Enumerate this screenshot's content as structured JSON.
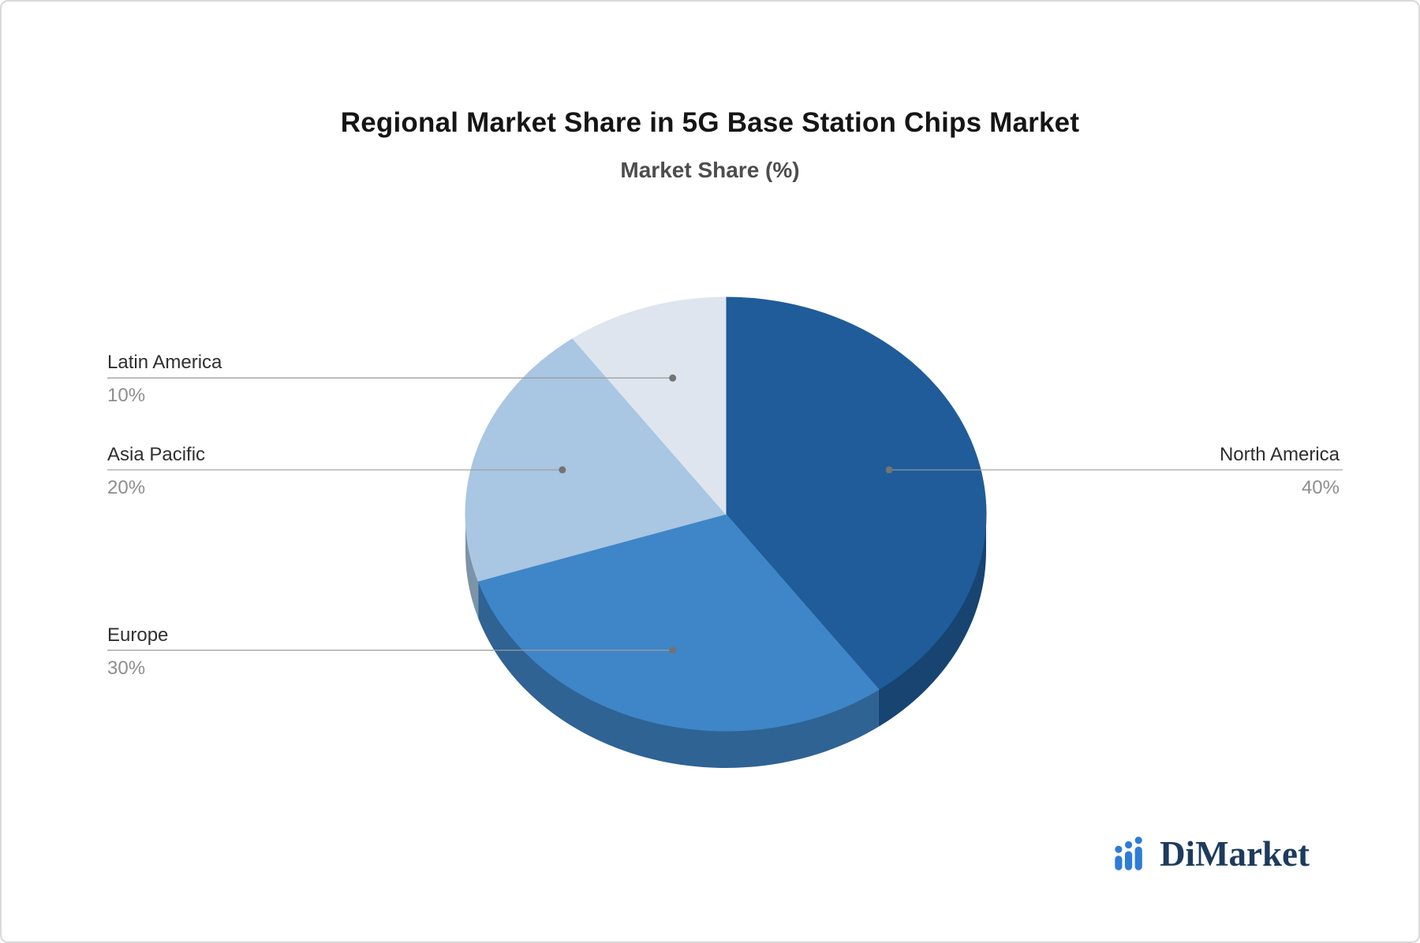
{
  "title": "Regional Market Share in 5G Base Station Chips Market",
  "subtitle": "Market Share (%)",
  "logo": {
    "text": "DiMarket",
    "icon": "bar-chart-icon",
    "text_color": "#1d3b5e",
    "icon_color": "#2e7cd6"
  },
  "chart_data": {
    "type": "pie",
    "style": "3d",
    "title": "Regional Market Share in 5G Base Station Chips Market",
    "subtitle": "Market Share (%)",
    "unit": "%",
    "start_angle_deg": 0,
    "direction": "clockwise",
    "legend": "none",
    "leader_color": "#9b9b9b",
    "dot_color": "#737373",
    "slices": [
      {
        "label": "North America",
        "value": 40,
        "display": "40%",
        "color": "#1F5C99",
        "label_side": "right"
      },
      {
        "label": "Europe",
        "value": 30,
        "display": "30%",
        "color": "#3E86C7",
        "label_side": "left"
      },
      {
        "label": "Asia Pacific",
        "value": 20,
        "display": "20%",
        "color": "#A9C6E2",
        "label_side": "left"
      },
      {
        "label": "Latin America",
        "value": 10,
        "display": "10%",
        "color": "#DEE5EF",
        "label_side": "left"
      }
    ]
  }
}
